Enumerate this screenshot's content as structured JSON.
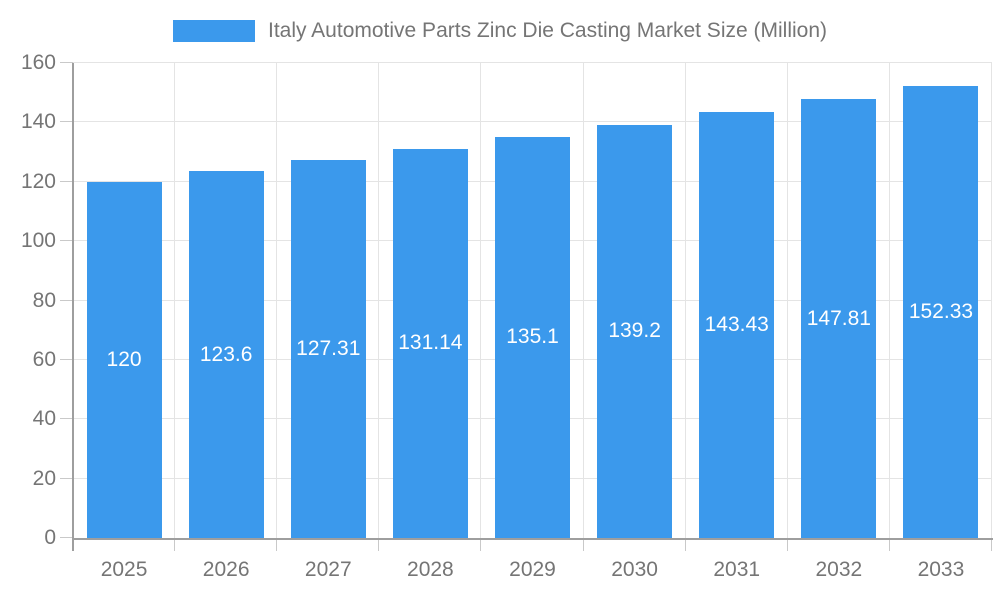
{
  "page": {
    "background": "#FFFFFF"
  },
  "legend": {
    "label": "Italy Automotive Parts Zinc Die Casting Market Size (Million)",
    "swatch_color": "#3B99EC"
  },
  "chart_data": {
    "type": "bar",
    "title": "Italy Automotive Parts Zinc Die Casting Market Size (Million)",
    "categories": [
      "2025",
      "2026",
      "2027",
      "2028",
      "2029",
      "2030",
      "2031",
      "2032",
      "2033"
    ],
    "series": [
      {
        "name": "Italy Automotive Parts Zinc Die Casting Market Size (Million)",
        "color": "#3B99EC",
        "values": [
          120,
          123.6,
          127.31,
          131.14,
          135.1,
          139.2,
          143.43,
          147.81,
          152.33
        ],
        "value_labels": [
          "120",
          "123.6",
          "127.31",
          "131.14",
          "135.1",
          "139.2",
          "143.43",
          "147.81",
          "152.33"
        ]
      }
    ],
    "xlabel": "",
    "ylabel": "",
    "ylim": [
      0,
      160
    ],
    "yticks": [
      0,
      20,
      40,
      60,
      80,
      100,
      120,
      140,
      160
    ],
    "grid": true,
    "legend_position": "top",
    "bar_value_label_position": "inside-center",
    "colors": {
      "bar_label_text": "#FFFFFF",
      "axis_text": "#757575",
      "axis_line": "#9E9E9E",
      "tick_line": "#C9C9C9",
      "grid_line": "#E4E4E4",
      "background": "#FFFFFF"
    }
  }
}
